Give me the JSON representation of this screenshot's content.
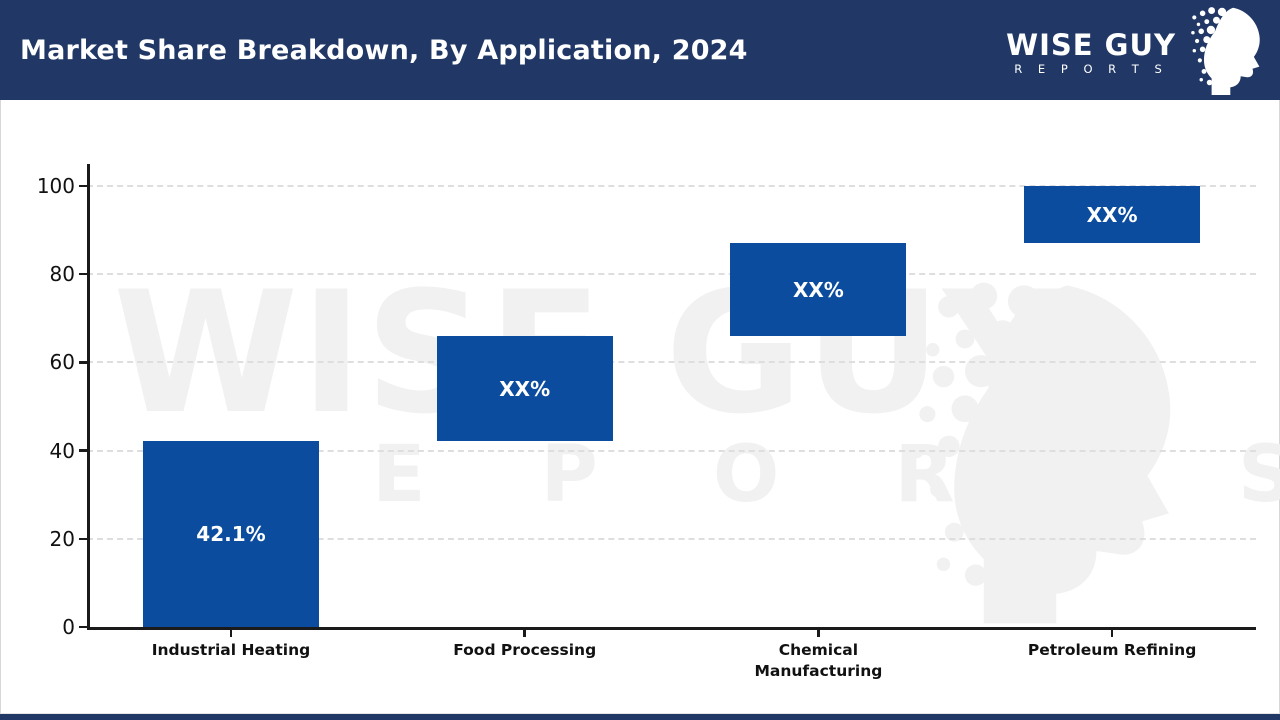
{
  "header": {
    "title": "Market Share Breakdown, By Application, 2024",
    "logo": {
      "line1": "WISE GUY",
      "line2": "R E P O R T S"
    }
  },
  "watermark": {
    "line1": "WISE GUY",
    "line2": "R E P O R T S"
  },
  "chart_data": {
    "type": "bar",
    "subtype": "waterfall",
    "title": "Market Share Breakdown, By Application, 2024",
    "categories": [
      "Industrial Heating",
      "Food Processing",
      "Chemical\nManufacturing",
      "Petroleum Refining"
    ],
    "segments": [
      {
        "category": "Industrial Heating",
        "start": 0,
        "end": 42.1,
        "label": "42.1%"
      },
      {
        "category": "Food Processing",
        "start": 42.1,
        "end": 66,
        "label": "XX%"
      },
      {
        "category": "Chemical Manufacturing",
        "start": 66,
        "end": 87,
        "label": "XX%"
      },
      {
        "category": "Petroleum Refining",
        "start": 87,
        "end": 100,
        "label": "XX%"
      }
    ],
    "y_ticks": [
      0,
      20,
      40,
      60,
      80,
      100
    ],
    "ylim": [
      0,
      105
    ],
    "xlabel": "",
    "ylabel": "",
    "grid": "horizontal-dashed",
    "legend": "none",
    "bar_color": "#0b4c9e",
    "bar_label_color": "#ffffff"
  },
  "colors": {
    "header_bg": "#213866",
    "bar": "#0b4c9e",
    "grid": "#dedede",
    "axis": "#1a1a1a",
    "watermark": "#f1f1f1",
    "footer_strip": "#213866"
  }
}
